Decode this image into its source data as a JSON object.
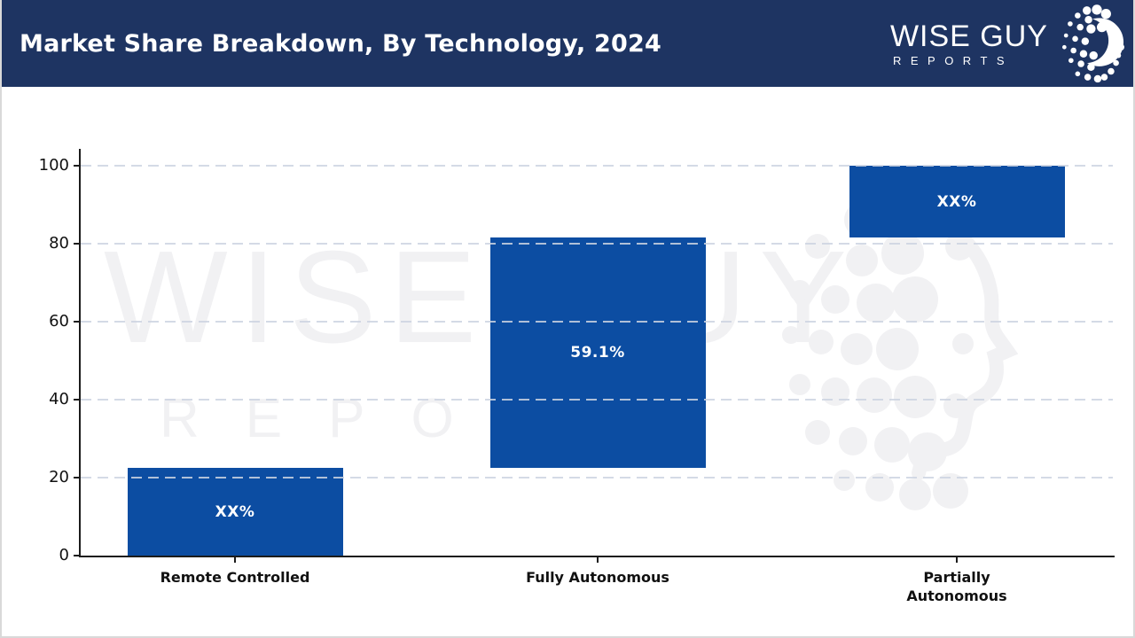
{
  "header": {
    "title": "Market Share Breakdown, By Technology, 2024"
  },
  "brand": {
    "name_line1": "WISE GUY",
    "name_line2": "REPORTS"
  },
  "watermark": {
    "line1": "WISE GUY",
    "line2": "REPORTS"
  },
  "colors": {
    "header_bg": "#1e3462",
    "bar_fill": "#0c4da2",
    "axis": "#1c1c1c",
    "gridline": "#cdd4e1",
    "bar_label_text": "#ffffff",
    "tick_text": "#111111",
    "watermark": "#f1f1f3"
  },
  "chart_data": {
    "type": "bar",
    "variant": "floating-segment-breakdown",
    "title": "Market Share Breakdown, By Technology, 2024",
    "categories": [
      "Remote Controlled",
      "Fully Autonomous",
      "Partially Autonomous"
    ],
    "category_label_lines": [
      [
        "Remote Controlled"
      ],
      [
        "Fully Autonomous"
      ],
      [
        "Partially",
        "Autonomous"
      ]
    ],
    "bars": [
      {
        "category": "Remote Controlled",
        "start": 0,
        "end": 22.4,
        "label": "XX%"
      },
      {
        "category": "Fully Autonomous",
        "start": 22.4,
        "end": 81.5,
        "label": "59.1%"
      },
      {
        "category": "Partially Autonomous",
        "start": 81.5,
        "end": 100,
        "label": "XX%"
      }
    ],
    "ylim": [
      0,
      100
    ],
    "yticks": [
      0,
      20,
      40,
      60,
      80,
      100
    ],
    "xlabel": "",
    "ylabel": "",
    "grid": {
      "horizontal": true,
      "style": "dashed"
    },
    "legend": null
  }
}
